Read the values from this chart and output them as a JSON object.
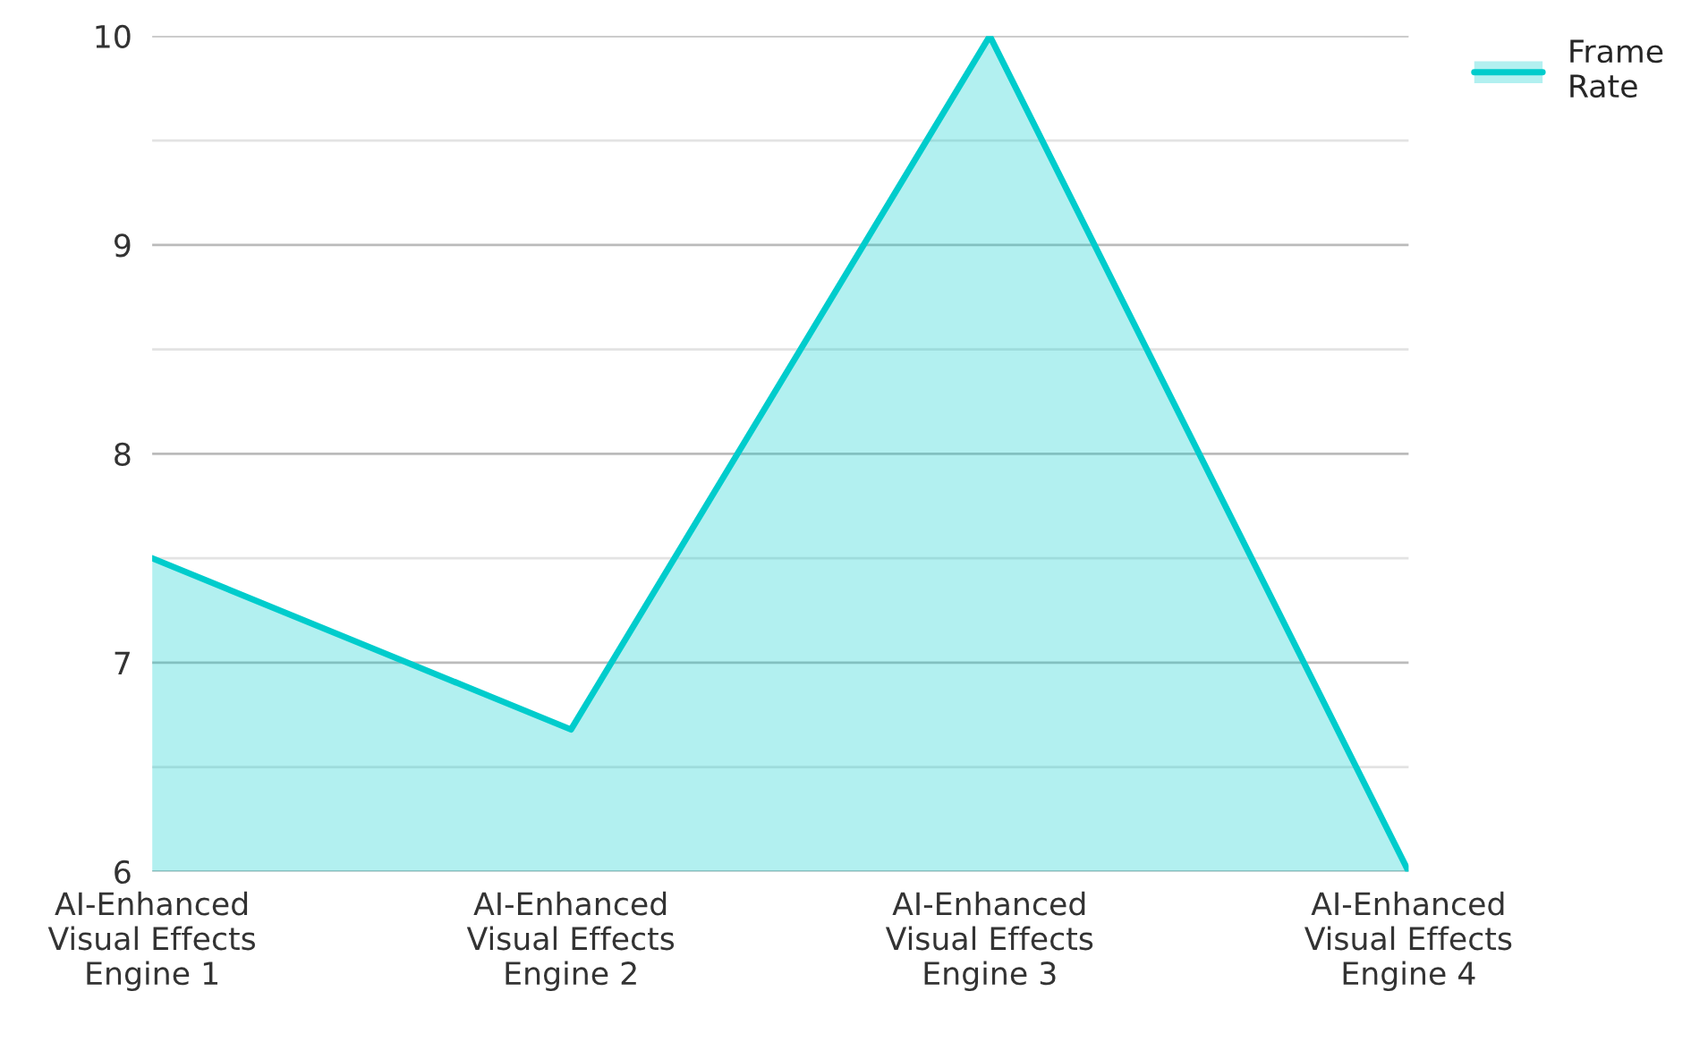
{
  "chart_data": {
    "type": "area",
    "categories": [
      "AI-Enhanced Visual Effects Engine 1",
      "AI-Enhanced Visual Effects Engine 2",
      "AI-Enhanced Visual Effects Engine 3",
      "AI-Enhanced Visual Effects Engine 4"
    ],
    "series": [
      {
        "name": "Frame Rate",
        "color": "#00cccc",
        "values": [
          7.5,
          6.68,
          10,
          6
        ]
      }
    ],
    "ylim": [
      6,
      10
    ],
    "yticks": [
      6,
      {
        "value": 6.5,
        "label": null
      },
      7,
      {
        "value": 7.5,
        "label": null
      },
      8,
      {
        "value": 8.5,
        "label": null
      },
      9,
      {
        "value": 9.5,
        "label": null
      },
      10
    ],
    "grid": "y",
    "legend": "top right"
  }
}
